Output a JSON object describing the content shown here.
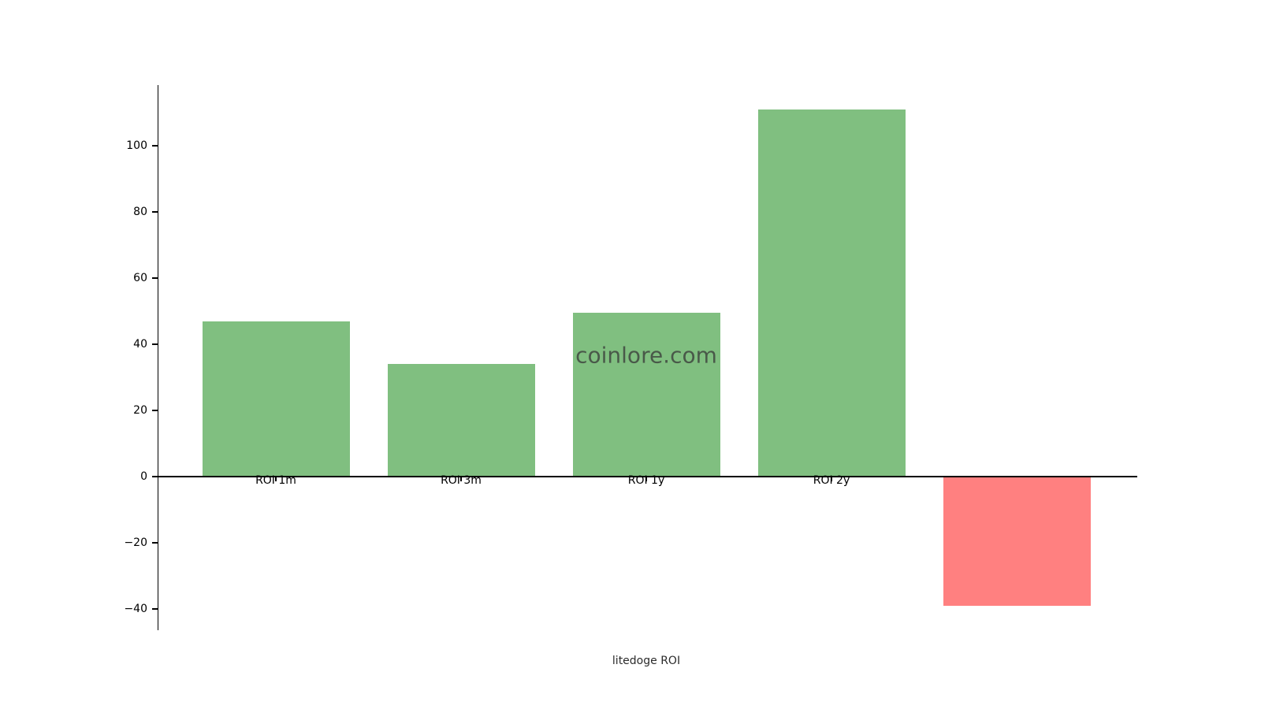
{
  "page": {
    "background_color": "#ffffff",
    "axis_color": "#000000"
  },
  "chart_data": {
    "type": "bar",
    "title": "litedoge ROI",
    "watermark": "coinlore.com",
    "categories": [
      "ROI 1m",
      "ROI 3m",
      "ROI 1y",
      "ROI 2y",
      ""
    ],
    "values": [
      47,
      34,
      49.5,
      111,
      -39
    ],
    "bar_colors": [
      "#80bf80",
      "#80bf80",
      "#80bf80",
      "#80bf80",
      "#ff8080"
    ],
    "positive_color": "#80bf80",
    "negative_color": "#ff8080",
    "xlabel": "",
    "ylabel": "",
    "yticks": [
      100,
      80,
      60,
      40,
      20,
      0,
      -20,
      -40
    ],
    "ytick_labels": [
      "100",
      "80",
      "60",
      "40",
      "20",
      "0",
      "−20",
      "−40"
    ],
    "ylim": [
      -46.5,
      118.3
    ],
    "grid": false,
    "legend_position": "none"
  }
}
